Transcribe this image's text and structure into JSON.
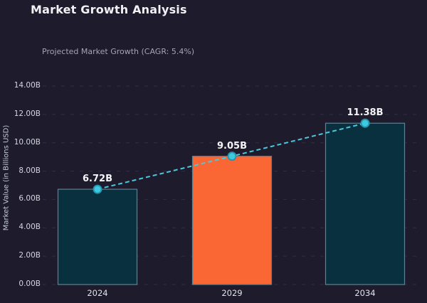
{
  "header": {
    "title": "Market Growth Analysis",
    "subtitle": "Projected Market Growth (CAGR: 5.4%)"
  },
  "chart_data": {
    "type": "bar",
    "title": "Market Growth Analysis",
    "subtitle": "Projected Market Growth (CAGR: 5.4%)",
    "categories": [
      "2024",
      "2029",
      "2034"
    ],
    "values": [
      6.72,
      9.05,
      11.38
    ],
    "value_labels": [
      "6.72B",
      "9.05B",
      "11.38B"
    ],
    "xlabel": "",
    "ylabel": "Market Value (in Billions USD)",
    "ylim": [
      0,
      14
    ],
    "ytick_step": 2,
    "ytick_labels": [
      "0.00B",
      "2.00B",
      "4.00B",
      "6.00B",
      "8.00B",
      "10.00B",
      "12.00B",
      "14.00B"
    ],
    "grid": "horizontal-dashed",
    "legend": "none",
    "overlay_series": {
      "name": "trend-line",
      "style": "dashed",
      "x": [
        "2024",
        "2029",
        "2034"
      ],
      "y": [
        6.72,
        9.05,
        11.38
      ]
    },
    "colors": {
      "background": "#1d1b2c",
      "bar_fills": [
        "#09303f",
        "#fa6634",
        "#09303f"
      ],
      "bar_edge": "#5e8191",
      "trend_line": "#4cc8dc",
      "marker_fill": "#3ec9e0",
      "marker_edge": "#2596ad",
      "grid_line": "#312f45",
      "tick_text": "#d4d6e0",
      "value_text": "#f4f5f8"
    }
  }
}
